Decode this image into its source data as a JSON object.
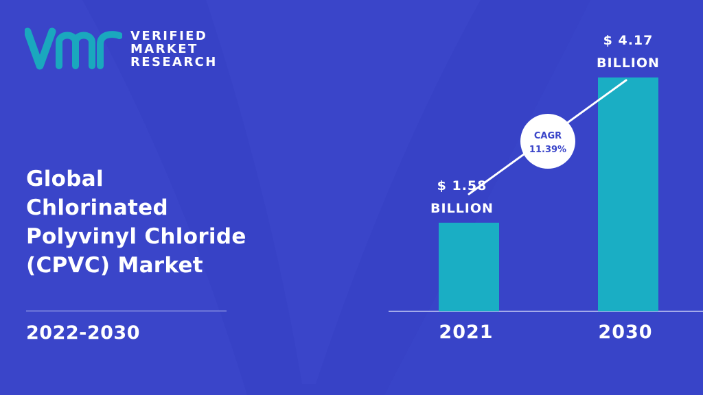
{
  "brand": {
    "line1": "VERIFIED",
    "line2": "MARKET",
    "line3": "RESEARCH",
    "logo_icon": "vmr-logo-icon"
  },
  "title": {
    "line1": "Global",
    "line2": "Chlorinated",
    "line3": "Polyvinyl Chloride",
    "line4": "(CPVC) Market"
  },
  "period": "2022-2030",
  "colors": {
    "background": "#3a45c9",
    "bar": "#1aaec4",
    "logo_teal": "#1aa8be",
    "text": "#ffffff"
  },
  "chart_data": {
    "type": "bar",
    "categories": [
      "2021",
      "2030"
    ],
    "values": [
      1.58,
      4.17
    ],
    "unit": "USD billion",
    "value_labels": [
      [
        "$ 1.58",
        "BILLION"
      ],
      [
        "$ 4.17",
        "BILLION"
      ]
    ],
    "cagr": {
      "label": "CAGR",
      "value": "11.39%"
    }
  }
}
